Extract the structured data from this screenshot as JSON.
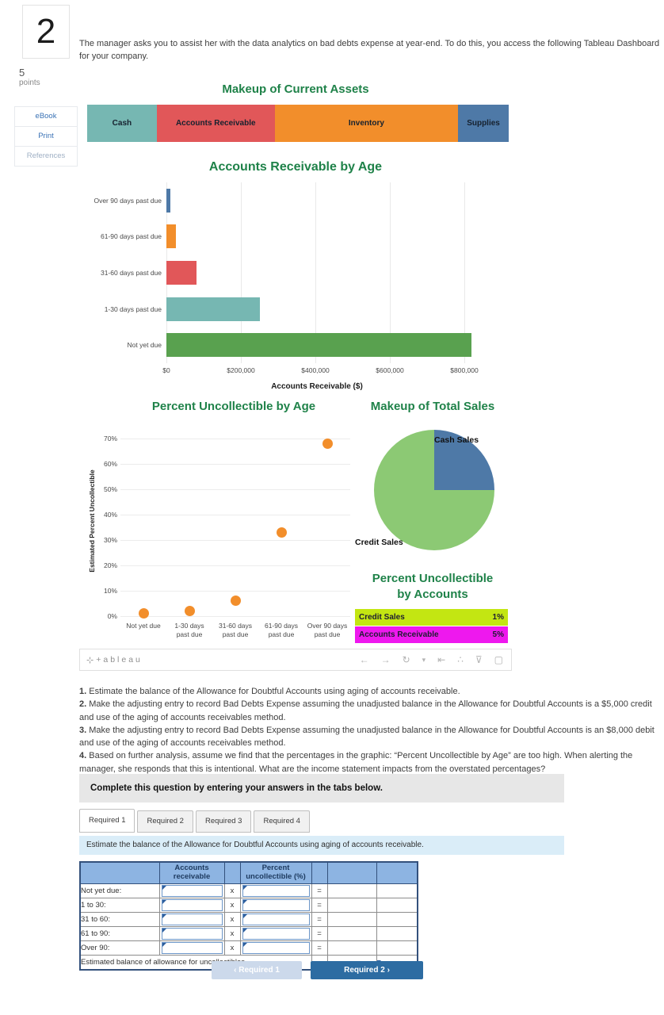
{
  "theme": {
    "title_green": "#1f8249",
    "table_header_blue": "#8db4e2",
    "next_button_blue": "#2d6ca2",
    "prev_button_blue": "#ccd9eb"
  },
  "page": {
    "problem_number": "2",
    "points_value": "5",
    "points_label": "points",
    "sidebar_links": [
      {
        "label": "eBook",
        "muted": false
      },
      {
        "label": "Print",
        "muted": false
      },
      {
        "label": "References",
        "muted": true
      }
    ],
    "intro": "The manager asks you to assist her with the data analytics on bad debts expense at year-end. To do this, you access the following Tableau Dashboard for your company."
  },
  "chart_data": [
    {
      "type": "bar",
      "subtype": "stacked-horizontal",
      "title": "Makeup of Current Assets",
      "categories": [
        "Cash",
        "Accounts Receivable",
        "Inventory",
        "Supplies"
      ],
      "values": [
        16.5,
        28,
        43.5,
        12
      ],
      "unit": "percent of total (unlabeled)",
      "colors": [
        "#76b7b2",
        "#e15759",
        "#f28e2b",
        "#4e79a7"
      ]
    },
    {
      "type": "bar",
      "subtype": "horizontal",
      "title": "Accounts Receivable by Age",
      "categories": [
        "Over 90 days past due",
        "61-90 days past due",
        "31-60 days past due",
        "1-30 days past due",
        "Not yet due"
      ],
      "values": [
        10000,
        25000,
        80000,
        250000,
        820000
      ],
      "xlabel": "Accounts Receivable ($)",
      "xlim": [
        0,
        800000
      ],
      "xticks": [
        "$0",
        "$200,000",
        "$400,000",
        "$600,000",
        "$800,000"
      ],
      "colors": [
        "#4e79a7",
        "#f28e2b",
        "#e15759",
        "#76b7b2",
        "#59a14f"
      ],
      "grid": true
    },
    {
      "type": "scatter",
      "title": "Percent Uncollectible by Age",
      "ylabel": "Estimated Percent Uncollectible",
      "categories": [
        "Not yet due",
        "1-30 days\npast due",
        "31-60 days\npast due",
        "61-90 days\npast due",
        "Over 90 days\npast due"
      ],
      "values": [
        1,
        2,
        6,
        33,
        68
      ],
      "ylim": [
        0,
        75
      ],
      "yticks": [
        0,
        10,
        20,
        30,
        40,
        50,
        60,
        70
      ],
      "ytick_labels": [
        "0%",
        "10%",
        "20%",
        "30%",
        "40%",
        "50%",
        "60%",
        "70%"
      ],
      "color": "#f28e2b",
      "grid": true
    },
    {
      "type": "pie",
      "title": "Makeup of Total Sales",
      "labels": [
        "Cash Sales",
        "Credit Sales"
      ],
      "values": [
        25,
        75
      ],
      "colors": [
        "#4e79a7",
        "#8cc974"
      ]
    },
    {
      "type": "table",
      "title": "Percent Uncollectible\nby Accounts",
      "rows": [
        {
          "label": "Credit Sales",
          "value": "1%"
        },
        {
          "label": "Accounts Receivable",
          "value": "5%"
        }
      ],
      "row_colors": [
        "#c3e612",
        "#ee18ee"
      ]
    }
  ],
  "dashboard": {
    "toolbar": {
      "logo_mark": "⊹",
      "logo_text": "+ableau",
      "icons": [
        {
          "name": "undo-icon",
          "glyph": "←"
        },
        {
          "name": "redo-icon",
          "glyph": "→"
        },
        {
          "name": "replay-icon",
          "glyph": "↻"
        },
        {
          "name": "caret-down-icon",
          "glyph": "▾",
          "small": true
        },
        {
          "name": "revert-icon",
          "glyph": "⇤"
        },
        {
          "name": "share-icon",
          "glyph": "∴"
        },
        {
          "name": "download-icon",
          "glyph": "⊽"
        },
        {
          "name": "fullscreen-icon",
          "glyph": "▢"
        }
      ]
    }
  },
  "questions": [
    {
      "num": "1.",
      "text": "Estimate the balance of the Allowance for Doubtful Accounts using aging of accounts receivable."
    },
    {
      "num": "2.",
      "text": "Make the adjusting entry to record Bad Debts Expense assuming the unadjusted balance in the Allowance for Doubtful Accounts is a $5,000 credit and use of the aging of accounts receivables method."
    },
    {
      "num": "3.",
      "text": "Make the adjusting entry to record Bad Debts Expense assuming the unadjusted balance in the Allowance for Doubtful Accounts is an $8,000 debit and use of the aging of accounts receivables method."
    },
    {
      "num": "4.",
      "text": "Based on further analysis, assume we find that the percentages in the graphic: “Percent Uncollectible by Age” are too high. When alerting the manager, she responds that this is intentional. What are the income statement impacts from the overstated percentages?"
    }
  ],
  "panel": {
    "banner": "Complete this question by entering your answers in the tabs below.",
    "tabs": [
      "Required 1",
      "Required 2",
      "Required 3",
      "Required 4"
    ],
    "active_tab_index": 0,
    "instruction": "Estimate the balance of the Allowance for Doubtful Accounts using aging of accounts receivable."
  },
  "answer_table": {
    "col_headers": [
      "",
      "Accounts\nreceivable",
      "",
      "Percent\nuncollectible (%)",
      "",
      "",
      ""
    ],
    "row_labels": [
      "Not yet due:",
      "1 to 30:",
      "31 to 60:",
      "61 to 90:",
      "Over 90:"
    ],
    "multiply": "x",
    "equals": "=",
    "footer_label": "Estimated balance of allowance for uncollectibles"
  },
  "nav": {
    "prev_chevron": "‹",
    "prev_label": "Required 1",
    "next_label": "Required 2",
    "next_chevron": "›"
  }
}
